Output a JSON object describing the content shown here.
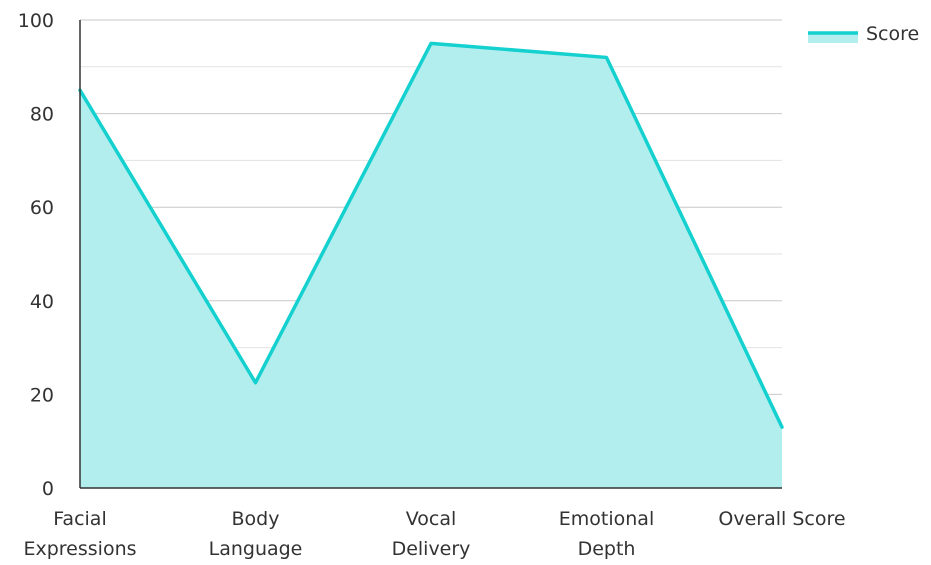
{
  "chart_data": {
    "type": "area",
    "title": "",
    "xlabel": "",
    "ylabel": "",
    "categories": [
      [
        "Facial",
        "Expressions"
      ],
      [
        "Body",
        "Language"
      ],
      [
        "Vocal",
        "Delivery"
      ],
      [
        "Emotional",
        "Depth"
      ],
      [
        "Overall Score"
      ]
    ],
    "series": [
      {
        "name": "Score",
        "values": [
          85,
          22.5,
          95,
          92,
          13
        ],
        "color": "#14D0CF",
        "fill_color": "#B3EEEE"
      }
    ],
    "ylim": [
      0,
      100
    ],
    "yticks": [
      "0",
      "20",
      "40",
      "60",
      "80",
      "100"
    ],
    "grid": true,
    "legend_position": "top-right"
  }
}
